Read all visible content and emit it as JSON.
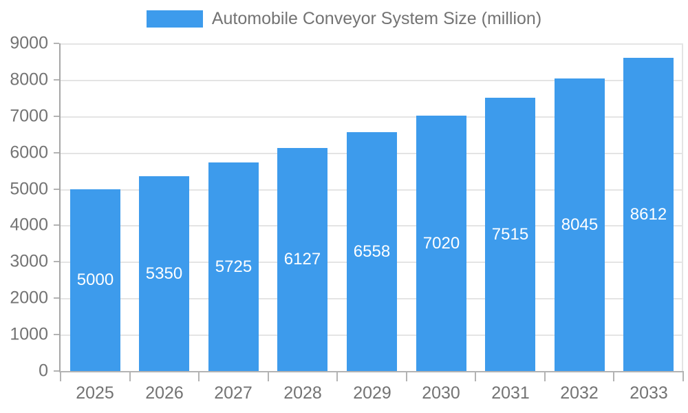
{
  "chart_data": {
    "type": "bar",
    "title": "Automobile Conveyor System Size (million)",
    "categories": [
      "2025",
      "2026",
      "2027",
      "2028",
      "2029",
      "2030",
      "2031",
      "2032",
      "2033"
    ],
    "series": [
      {
        "name": "Automobile Conveyor System Size (million)",
        "values": [
          5000,
          5350,
          5725,
          6127,
          6558,
          7020,
          7515,
          8045,
          8612
        ]
      }
    ],
    "xlabel": "",
    "ylabel": "",
    "ylim": [
      0,
      9000
    ],
    "yticks": [
      0,
      1000,
      2000,
      3000,
      4000,
      5000,
      6000,
      7000,
      8000,
      9000
    ],
    "grid": true,
    "legend_position": "top",
    "bar_value_labels": "inside-center"
  },
  "style": {
    "bar_color": "#3D9BEC",
    "bar_label_color": "#FFFFFF",
    "axis_text_color": "#737373",
    "legend_text_color": "#737373",
    "grid_color": "#E4E4E4",
    "y_axis_line_color": "#A6A6A6",
    "x_axis_line_color": "#B3B3B3",
    "tick_mark_color": "#B3B3B3",
    "background_color": "#FFFFFF"
  }
}
